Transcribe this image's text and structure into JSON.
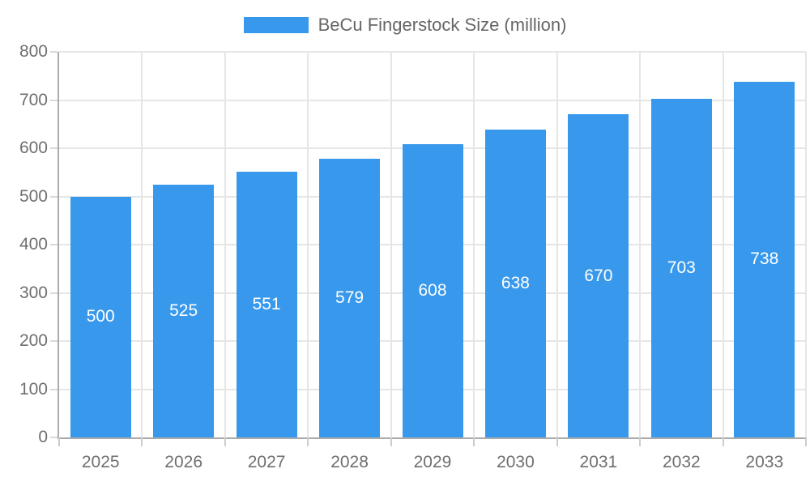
{
  "chart_data": {
    "type": "bar",
    "title": "",
    "legend": {
      "label": "BeCu Fingerstock Size (million)",
      "position": "top"
    },
    "categories": [
      "2025",
      "2026",
      "2027",
      "2028",
      "2029",
      "2030",
      "2031",
      "2032",
      "2033"
    ],
    "series": [
      {
        "name": "BeCu Fingerstock Size (million)",
        "values": [
          500,
          525,
          551,
          579,
          608,
          638,
          670,
          703,
          738
        ]
      }
    ],
    "value_labels_shown": true,
    "xlabel": "",
    "ylabel": "",
    "ylim": [
      0,
      800
    ],
    "yticks": [
      0,
      100,
      200,
      300,
      400,
      500,
      600,
      700,
      800
    ],
    "grid": true,
    "colors": {
      "bar": "#3899ec",
      "bar_value_text": "#ffffff",
      "legend_text": "#666666",
      "axis_text": "#6f6f6f",
      "gridline": "#e6e6e6",
      "axis_line": "#ababab"
    }
  }
}
